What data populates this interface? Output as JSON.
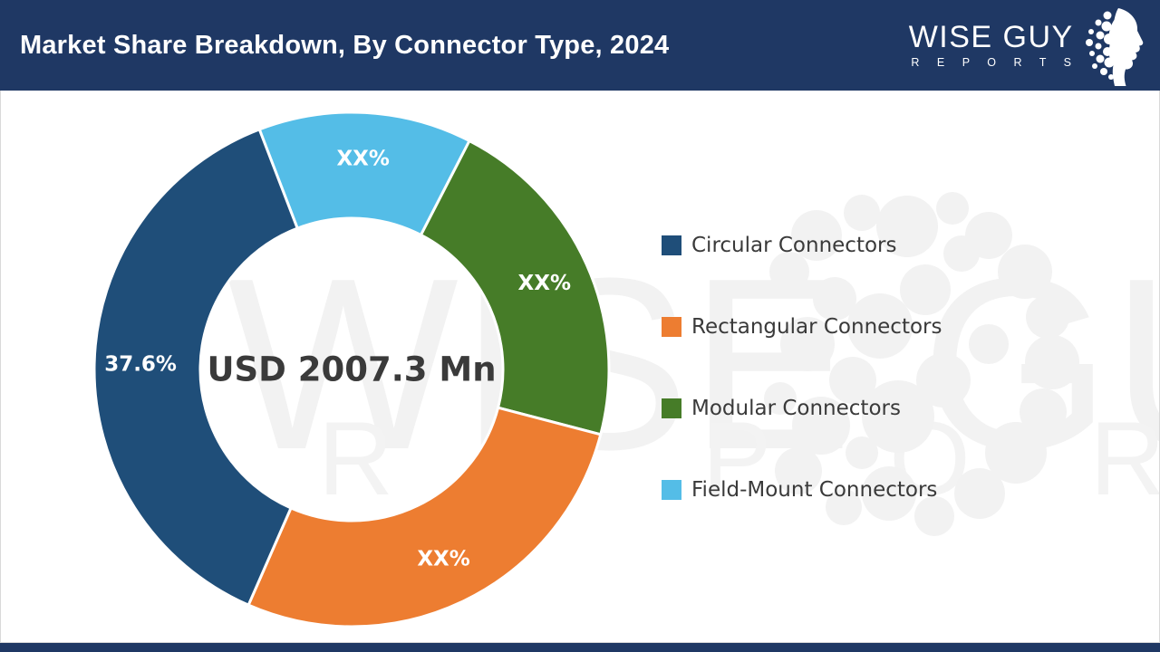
{
  "header": {
    "title": "Market Share Breakdown, By Connector Type, 2024",
    "bg_color": "#1F3864",
    "logo": {
      "line1": "WISE GUY",
      "line2": "R E P O R T S"
    }
  },
  "watermark": {
    "line1": "WISE GUY",
    "line2": "R E P O R T S"
  },
  "chart_data": {
    "type": "pie",
    "subtype": "donut",
    "title": "Market Share Breakdown, By Connector Type, 2024",
    "center_label": "USD 2007.3 Mn",
    "start_angle_deg": -21,
    "direction": "clockwise",
    "slices": [
      {
        "name": "Field-Mount Connectors",
        "value_pct": 13.4,
        "display_label": "XX%",
        "color": "#54BDE7"
      },
      {
        "name": "Modular Connectors",
        "value_pct": 21.5,
        "display_label": "XX%",
        "color": "#467C28"
      },
      {
        "name": "Rectangular Connectors",
        "value_pct": 27.5,
        "display_label": "XX%",
        "color": "#ED7D31"
      },
      {
        "name": "Circular Connectors",
        "value_pct": 37.6,
        "display_label": "37.6%",
        "color": "#1F4E79"
      }
    ],
    "legend_position": "right"
  },
  "legend": {
    "items": [
      {
        "label": "Circular Connectors",
        "color": "#1F4E79"
      },
      {
        "label": "Rectangular Connectors",
        "color": "#ED7D31"
      },
      {
        "label": "Modular Connectors",
        "color": "#467C28"
      },
      {
        "label": "Field-Mount Connectors",
        "color": "#54BDE7"
      }
    ]
  }
}
